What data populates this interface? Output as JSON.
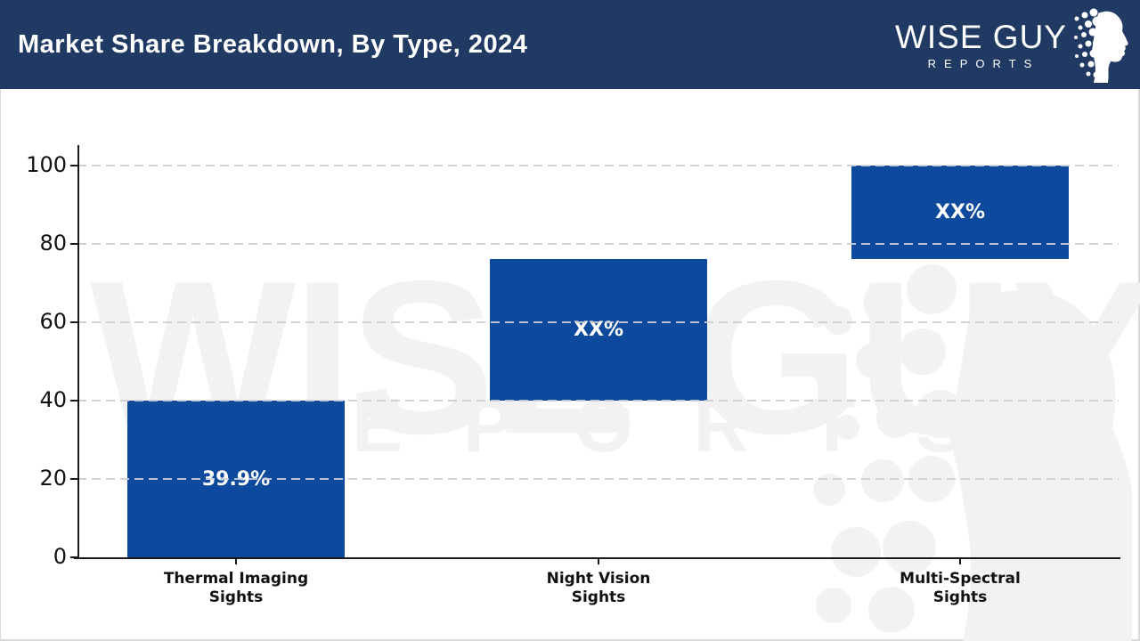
{
  "header": {
    "title": "Market Share Breakdown, By Type, 2024",
    "bg_color": "#203A64",
    "logo": {
      "wordmark": "WISE GUY",
      "sub": "REPORTS"
    }
  },
  "watermark": {
    "line1": "WISE GUY",
    "line2": "REPORTS"
  },
  "chart_data": {
    "type": "bar",
    "subtype": "waterfall",
    "title": "Market Share Breakdown, By Type, 2024",
    "categories": [
      {
        "line1": "Thermal Imaging",
        "line2": "Sights"
      },
      {
        "line1": "Night Vision",
        "line2": "Sights"
      },
      {
        "line1": "Multi-Spectral",
        "line2": "Sights"
      }
    ],
    "bars": [
      {
        "label": "39.9%",
        "start": 0,
        "end": 39.9
      },
      {
        "label": "XX%",
        "start": 39.9,
        "end": 76.1
      },
      {
        "label": "XX%",
        "start": 76.1,
        "end": 100
      }
    ],
    "bar_color": "#0D4A9E",
    "bar_label_color": "#ffffff",
    "yticks": [
      0,
      20,
      40,
      60,
      80,
      100
    ],
    "ylim": [
      0,
      100
    ],
    "grid": true,
    "grid_style": "dashed",
    "legend": null
  }
}
